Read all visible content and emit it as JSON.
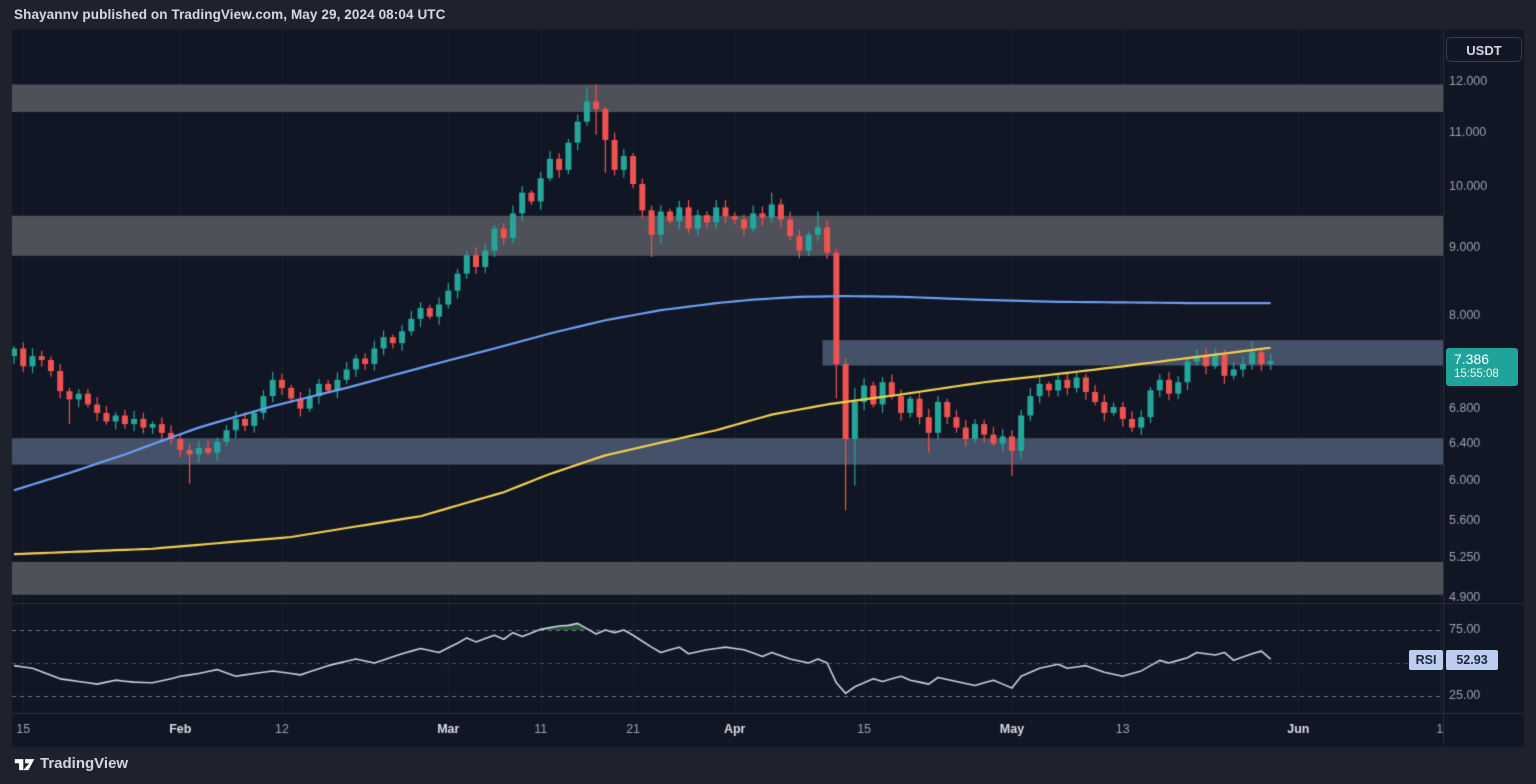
{
  "header": {
    "title": "Shayannv published on TradingView.com, May 29, 2024 08:04 UTC"
  },
  "symbol_button": {
    "label": "USDT"
  },
  "price_badge": {
    "price": "7.386",
    "countdown": "15:55:08",
    "color": "#20a39a"
  },
  "rsi_badge": {
    "label": "RSI",
    "value": "52.93",
    "bg": "#bccdf0"
  },
  "footer": {
    "brand": "TradingView"
  },
  "chart_data": {
    "type": "candlestick+rsi",
    "quote_currency": "USDT",
    "timeframe": "1D",
    "date_range": "2024-01-14 to 2024-05-29",
    "last_price": 7.386,
    "price_scale": "log",
    "price_axis_labels": [
      {
        "label": "12.000",
        "value": 12
      },
      {
        "label": "11.000",
        "value": 11
      },
      {
        "label": "10.000",
        "value": 10
      },
      {
        "label": "9.000",
        "value": 9
      },
      {
        "label": "8.000",
        "value": 8
      },
      {
        "label": "6.800",
        "value": 6.8
      },
      {
        "label": "6.400",
        "value": 6.4
      },
      {
        "label": "6.000",
        "value": 6.0
      },
      {
        "label": "5.600",
        "value": 5.6
      },
      {
        "label": "5.250",
        "value": 5.25
      },
      {
        "label": "4.900",
        "value": 4.9
      }
    ],
    "time_axis_labels": [
      {
        "label": "15",
        "day": 1,
        "major": false
      },
      {
        "label": "Feb",
        "day": 18,
        "major": true
      },
      {
        "label": "12",
        "day": 29,
        "major": false
      },
      {
        "label": "Mar",
        "day": 47,
        "major": true
      },
      {
        "label": "11",
        "day": 57,
        "major": false
      },
      {
        "label": "21",
        "day": 67,
        "major": false
      },
      {
        "label": "Apr",
        "day": 78,
        "major": true
      },
      {
        "label": "15",
        "day": 92,
        "major": false
      },
      {
        "label": "May",
        "day": 108,
        "major": true
      },
      {
        "label": "13",
        "day": 120,
        "major": false
      },
      {
        "label": "Jun",
        "day": 139,
        "major": true
      },
      {
        "label": "1",
        "day": 154.3,
        "major": false
      }
    ],
    "zones": [
      {
        "top": 11.95,
        "bottom": 11.39,
        "type": "resistance",
        "color": "#4e505a",
        "from_day": 0
      },
      {
        "top": 9.51,
        "bottom": 8.87,
        "type": "resistance",
        "color": "#4e505a",
        "from_day": 0
      },
      {
        "top": 7.66,
        "bottom": 7.33,
        "type": "current-resistance",
        "color": "#455168",
        "from_day": 87.5
      },
      {
        "top": 6.46,
        "bottom": 6.17,
        "type": "support",
        "color": "#455168",
        "from_day": 0
      },
      {
        "top": 5.21,
        "bottom": 4.92,
        "type": "support",
        "color": "#4e505a",
        "from_day": 0
      }
    ],
    "first_open": 7.45,
    "closes": [
      7.55,
      7.32,
      7.45,
      7.4,
      7.26,
      7.01,
      6.91,
      6.98,
      6.85,
      6.75,
      6.65,
      6.72,
      6.62,
      6.68,
      6.58,
      6.62,
      6.52,
      6.45,
      6.33,
      6.28,
      6.35,
      6.3,
      6.42,
      6.55,
      6.68,
      6.6,
      6.75,
      6.95,
      7.15,
      7.05,
      6.92,
      6.8,
      6.95,
      7.1,
      7.02,
      7.15,
      7.28,
      7.42,
      7.35,
      7.55,
      7.7,
      7.62,
      7.78,
      7.95,
      8.1,
      7.98,
      8.15,
      8.35,
      8.6,
      8.88,
      8.7,
      8.95,
      9.3,
      9.15,
      9.55,
      9.9,
      9.75,
      10.15,
      10.5,
      10.3,
      10.8,
      11.2,
      11.6,
      11.45,
      10.85,
      10.3,
      10.55,
      10.05,
      9.6,
      9.2,
      9.58,
      9.42,
      9.65,
      9.3,
      9.52,
      9.4,
      9.65,
      9.5,
      9.45,
      9.3,
      9.55,
      9.48,
      9.7,
      9.45,
      9.18,
      8.95,
      9.2,
      9.32,
      8.92,
      7.35,
      6.45,
      6.88,
      7.08,
      6.85,
      7.12,
      6.95,
      6.75,
      6.92,
      6.7,
      6.52,
      6.88,
      6.7,
      6.58,
      6.45,
      6.62,
      6.5,
      6.4,
      6.48,
      6.32,
      6.72,
      6.95,
      7.1,
      7.02,
      7.15,
      7.05,
      7.18,
      7.0,
      6.88,
      6.75,
      6.82,
      6.68,
      6.58,
      6.7,
      7.02,
      7.15,
      6.98,
      7.12,
      7.38,
      7.45,
      7.32,
      7.48,
      7.2,
      7.28,
      7.35,
      7.5,
      7.35,
      7.386
    ],
    "special_wicks": {
      "6": [
        7.05,
        6.62
      ],
      "19": [
        6.4,
        5.97
      ],
      "62": [
        11.9,
        11.12
      ],
      "63": [
        11.95,
        10.95
      ],
      "64": [
        11.5,
        10.25
      ],
      "69": [
        9.68,
        8.85
      ],
      "82": [
        9.9,
        9.4
      ],
      "87": [
        9.58,
        9.1
      ],
      "89": [
        8.98,
        6.92
      ],
      "90": [
        7.42,
        5.7
      ],
      "91": [
        7.05,
        5.95
      ],
      "99": [
        6.8,
        6.3
      ],
      "108": [
        6.55,
        6.05
      ],
      "134": [
        7.65,
        7.28
      ]
    },
    "ma_blue": [
      [
        0,
        5.9
      ],
      [
        6,
        6.08
      ],
      [
        12,
        6.28
      ],
      [
        20,
        6.58
      ],
      [
        28,
        6.83
      ],
      [
        36,
        7.05
      ],
      [
        44,
        7.3
      ],
      [
        52,
        7.55
      ],
      [
        58,
        7.75
      ],
      [
        64,
        7.93
      ],
      [
        70,
        8.07
      ],
      [
        76,
        8.17
      ],
      [
        80,
        8.22
      ],
      [
        85,
        8.26
      ],
      [
        90,
        8.27
      ],
      [
        96,
        8.26
      ],
      [
        104,
        8.22
      ],
      [
        112,
        8.19
      ],
      [
        120,
        8.18
      ],
      [
        128,
        8.17
      ],
      [
        136,
        8.17
      ]
    ],
    "ma_yellow": [
      [
        0,
        5.28
      ],
      [
        15,
        5.33
      ],
      [
        30,
        5.44
      ],
      [
        44,
        5.64
      ],
      [
        53,
        5.88
      ],
      [
        58,
        6.07
      ],
      [
        64,
        6.27
      ],
      [
        70,
        6.41
      ],
      [
        76,
        6.55
      ],
      [
        82,
        6.73
      ],
      [
        88,
        6.85
      ],
      [
        96,
        6.97
      ],
      [
        105,
        7.12
      ],
      [
        112,
        7.21
      ],
      [
        120,
        7.32
      ],
      [
        128,
        7.44
      ],
      [
        136,
        7.56
      ]
    ],
    "rsi_levels": [
      75,
      50,
      25
    ],
    "rsi_axis_labels": [
      {
        "label": "75.00",
        "value": 75
      },
      {
        "label": "25.00",
        "value": 25
      }
    ],
    "rsi_current": 52.93,
    "rsi": [
      48,
      47,
      46,
      43.3,
      40.7,
      38,
      37,
      36,
      35,
      34,
      35.5,
      37,
      36.2,
      35.5,
      35.2,
      35,
      36.5,
      38,
      40,
      41,
      42,
      43.5,
      45,
      42.5,
      40,
      41,
      42,
      43,
      44,
      43,
      42,
      41,
      43.3,
      45.7,
      48,
      49.7,
      51.3,
      53,
      51.5,
      50,
      52.3,
      54.7,
      57,
      59,
      61,
      59.5,
      58,
      61.5,
      65,
      69,
      66,
      68.5,
      71,
      68,
      73,
      70,
      72.8,
      75.5,
      76.8,
      78,
      78.5,
      80,
      76,
      72,
      75,
      73,
      75,
      71,
      66.5,
      62,
      58,
      60,
      62,
      57,
      58.5,
      60,
      61,
      62,
      61,
      60,
      57.5,
      55,
      58,
      55.5,
      53,
      51.5,
      50,
      53,
      50,
      35,
      27,
      32,
      35,
      38,
      36,
      38,
      40,
      37,
      35.5,
      34,
      39,
      37.5,
      36,
      34.5,
      33,
      35,
      37,
      34,
      31,
      40,
      43,
      46,
      47.5,
      49,
      46,
      47,
      48,
      45.5,
      43,
      41.5,
      40,
      42,
      44,
      48,
      52,
      50,
      52,
      54,
      58,
      57,
      56,
      58,
      52,
      54.5,
      57,
      59,
      52.9
    ],
    "colors": {
      "up": "#26a69a",
      "down": "#ef5350",
      "ma_fast_blue": "#6d9ef2",
      "ma_slow_yellow": "#f0cf4e",
      "zone_gray": "#4e505a",
      "zone_blue": "#455168",
      "rsi_line": "#c8cfe2",
      "overbought_fill": "rgba(76,175,80,0.40)",
      "pane_bg": "#111624",
      "page_bg": "#1e222d",
      "axis_text": "#9aa0ab",
      "month_text": "#d8dbe2",
      "separator": "#2a2e39",
      "grid": "rgba(255,255,255,0.045)",
      "dashed_outer": "#6b7180",
      "dashed_mid": "#49505e"
    }
  }
}
